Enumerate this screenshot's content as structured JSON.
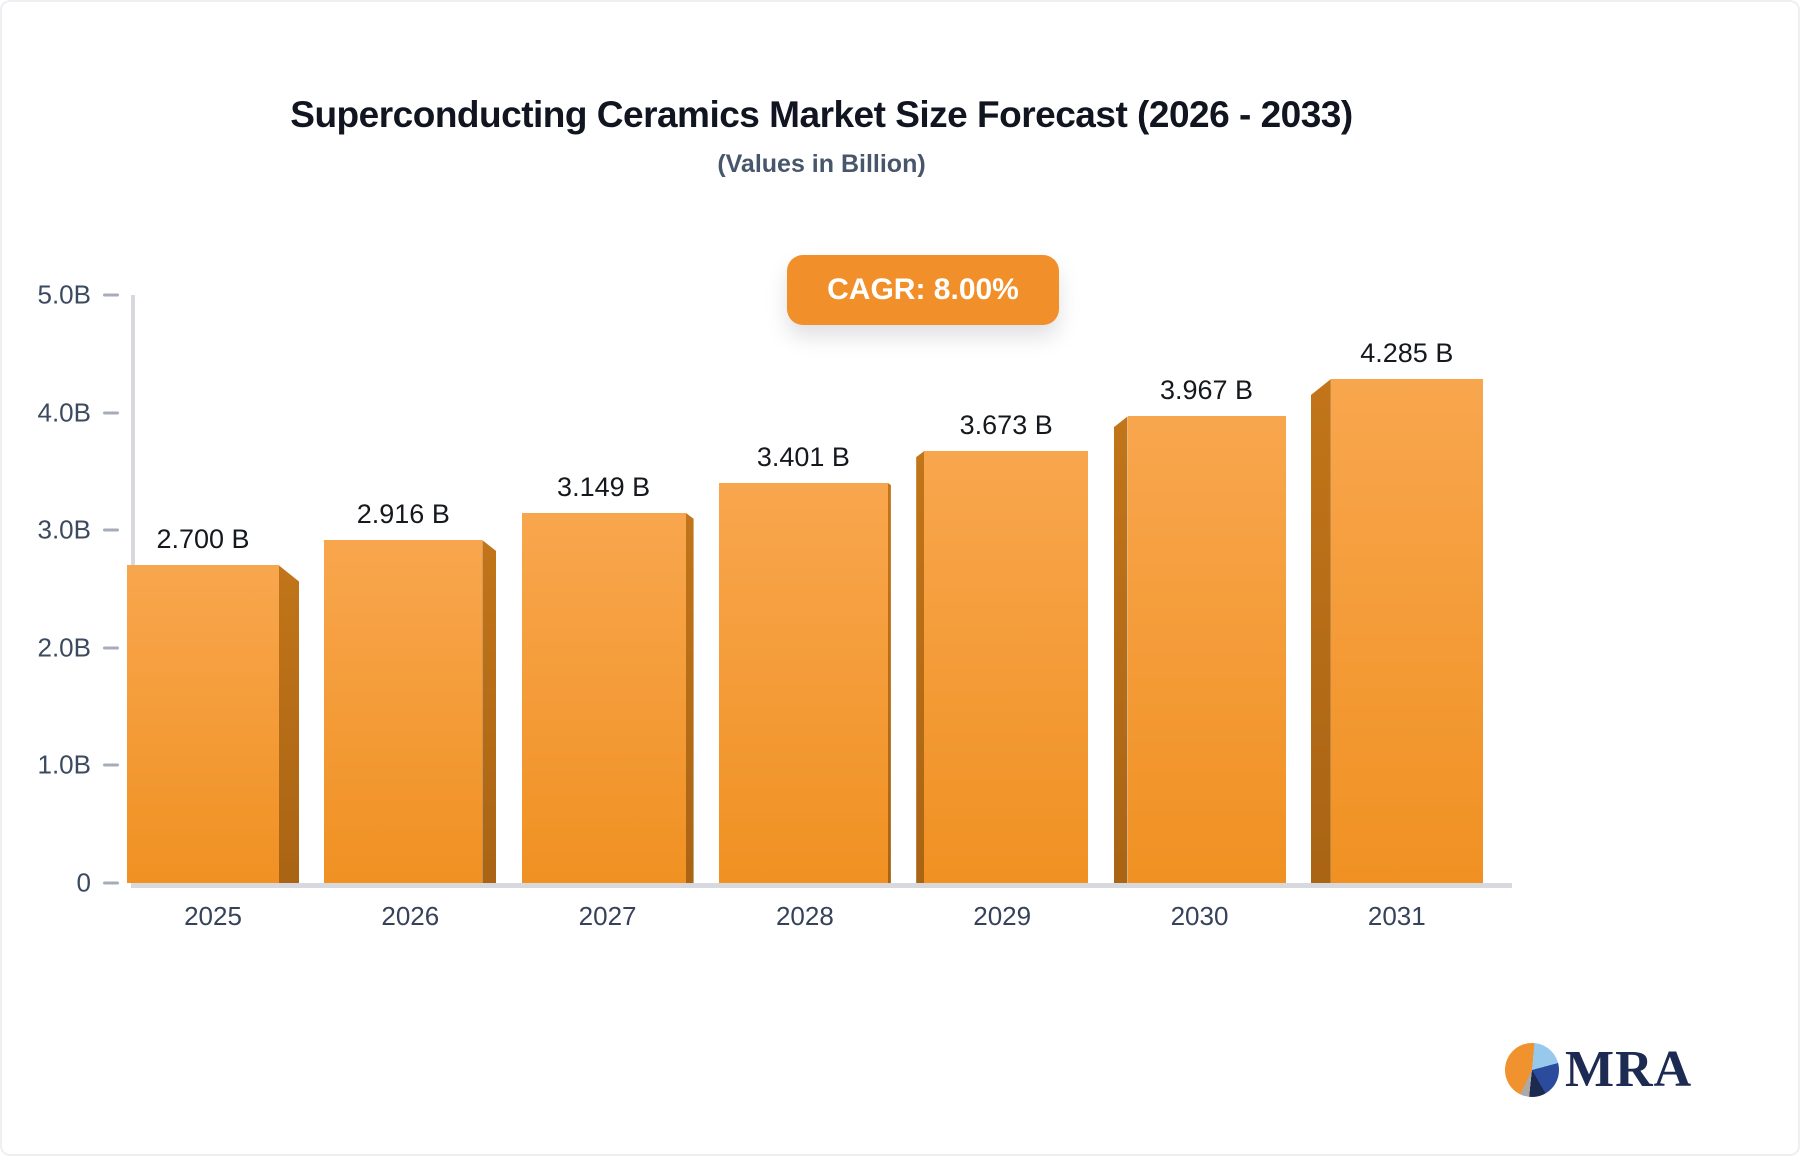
{
  "title": "Superconducting Ceramics Market Size Forecast (2026 - 2033)",
  "subtitle": "(Values in Billion)",
  "badge": {
    "label": "CAGR: 8.00%"
  },
  "chart_data": {
    "type": "bar",
    "title": "Superconducting Ceramics Market Size Forecast (2026 - 2033)",
    "categories": [
      "2025",
      "2026",
      "2027",
      "2028",
      "2029",
      "2030",
      "2031"
    ],
    "values": [
      2.7,
      2.916,
      3.149,
      3.401,
      3.673,
      3.967,
      4.285
    ],
    "value_labels": [
      "2.700 B",
      "2.916 B",
      "3.149 B",
      "3.401 B",
      "3.673 B",
      "3.967 B",
      "4.285 B"
    ],
    "xlabel": "",
    "ylabel": "",
    "ylim": [
      0,
      5
    ],
    "yticks": [
      {
        "value": 5,
        "label": "5.0B"
      },
      {
        "value": 4,
        "label": "4.0B"
      },
      {
        "value": 3,
        "label": "3.0B"
      },
      {
        "value": 2,
        "label": "2.0B"
      },
      {
        "value": 1,
        "label": "1.0B"
      },
      {
        "value": 0,
        "label": "0"
      }
    ],
    "grid": "off",
    "legend": "none",
    "colors": {
      "bar_top": "#f8a64e",
      "bar_bottom": "#f09122",
      "bar_side": "#b86f16",
      "axis": "#d8d9df",
      "tick": "#a6adb8",
      "tick_label": "#3c4a5f",
      "value_label": "#15181c",
      "badge_bg": "#f1902a",
      "badge_text": "#ffffff"
    }
  },
  "logo": {
    "text": "MRA",
    "icon": "pie-chart-icon",
    "colors": {
      "orange": "#f0922d",
      "light_blue": "#96c9eb",
      "blue": "#2b4c9c",
      "navy": "#1b2a4e",
      "gray": "#ada9a5",
      "text": "#1d2a52"
    }
  }
}
